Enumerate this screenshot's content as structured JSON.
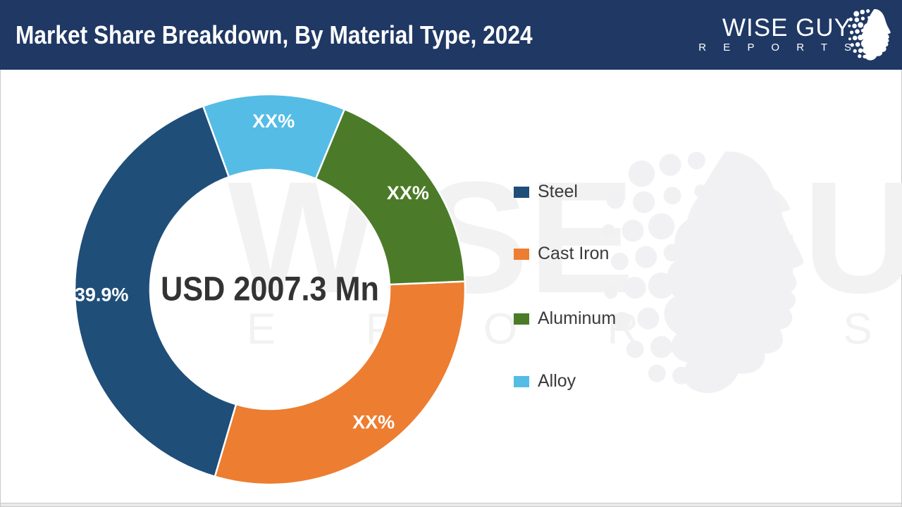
{
  "header": {
    "title": "Market Share Breakdown, By Material Type, 2024",
    "bg_color": "#1f3864",
    "logo": {
      "primary": "WISE GUY",
      "secondary": "R E P O R T S"
    }
  },
  "watermark": {
    "primary": "WISE GUY",
    "secondary": "R E P O R T S"
  },
  "chart_data": {
    "type": "pie",
    "subtype": "donut",
    "title": "Market Share Breakdown, By Material Type, 2024",
    "center_label": "USD 2007.3 Mn",
    "center_label_color": "#333333",
    "slice_label_color": "#ffffff",
    "start_angle_deg": 110,
    "direction": "counterclockwise",
    "legend_position": "right",
    "slices": [
      {
        "name": "Steel",
        "label": "39.9%",
        "share_pct": 39.9,
        "color": "#1f4e79"
      },
      {
        "name": "Cast Iron",
        "label": "XX%",
        "share_pct": 30.2,
        "color": "#ed7d31"
      },
      {
        "name": "Aluminum",
        "label": "XX%",
        "share_pct": 18.1,
        "color": "#4b7b28"
      },
      {
        "name": "Alloy",
        "label": "XX%",
        "share_pct": 11.8,
        "color": "#55bce5"
      }
    ]
  }
}
